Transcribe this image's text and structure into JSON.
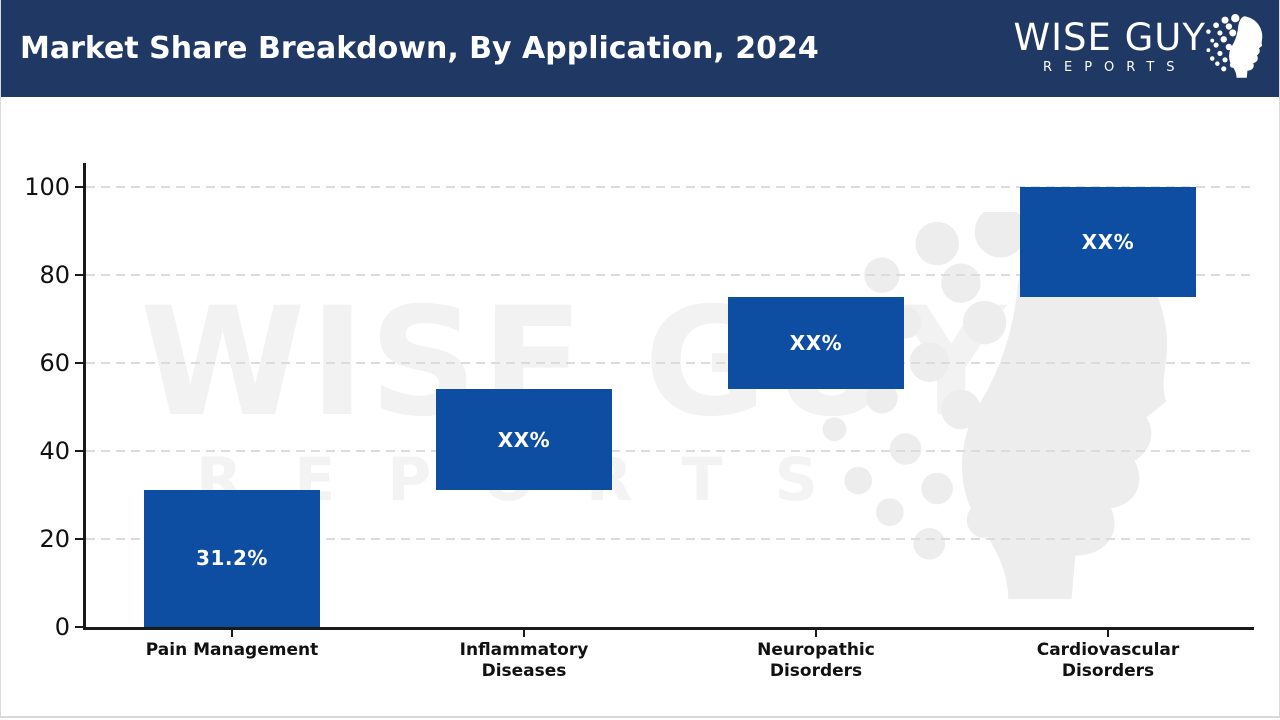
{
  "page": {
    "background": "#ffffff",
    "border_color": "#d9d9d9"
  },
  "header": {
    "bg_color": "#1f3864",
    "title": "Market Share Breakdown, By Application, 2024",
    "brand": {
      "wordmark": "WISE GUY",
      "subtitle": "REPORTS",
      "face_icon": "dotted-face-profile-icon",
      "color": "#ffffff"
    }
  },
  "watermark": {
    "wordmark": "WISE GUY",
    "subtitle": "REPORTS",
    "face_icon": "dotted-face-profile-icon",
    "color": "#f2f2f2"
  },
  "chart_data": {
    "type": "bar",
    "subtype": "waterfall-floating-segments",
    "title": "Market Share Breakdown, By Application, 2024",
    "categories": [
      "Pain Management",
      "Inflammatory\nDiseases",
      "Neuropathic\nDisorders",
      "Cardiovascular\nDisorders"
    ],
    "series": [
      {
        "name": "Market share (%)",
        "segments": [
          {
            "category": "Pain Management",
            "start": 0,
            "end": 31.2,
            "label": "31.2%"
          },
          {
            "category": "Inflammatory Diseases",
            "start": 31.2,
            "end": 54,
            "label": "XX%"
          },
          {
            "category": "Neuropathic Disorders",
            "start": 54,
            "end": 75,
            "label": "XX%"
          },
          {
            "category": "Cardiovascular Disorders",
            "start": 75,
            "end": 100,
            "label": "XX%"
          }
        ]
      }
    ],
    "xlabel": "",
    "ylabel": "",
    "ylim": [
      0,
      105
    ],
    "yticks": [
      0,
      20,
      40,
      60,
      80,
      100
    ],
    "grid": "horizontal-dashed",
    "legend": "none",
    "bar_color": "#0d4da2",
    "bar_label_color": "#ffffff",
    "axis_color": "#1a1a1a",
    "grid_color": "#dcdcdc",
    "tick_label_color": "#111111"
  }
}
